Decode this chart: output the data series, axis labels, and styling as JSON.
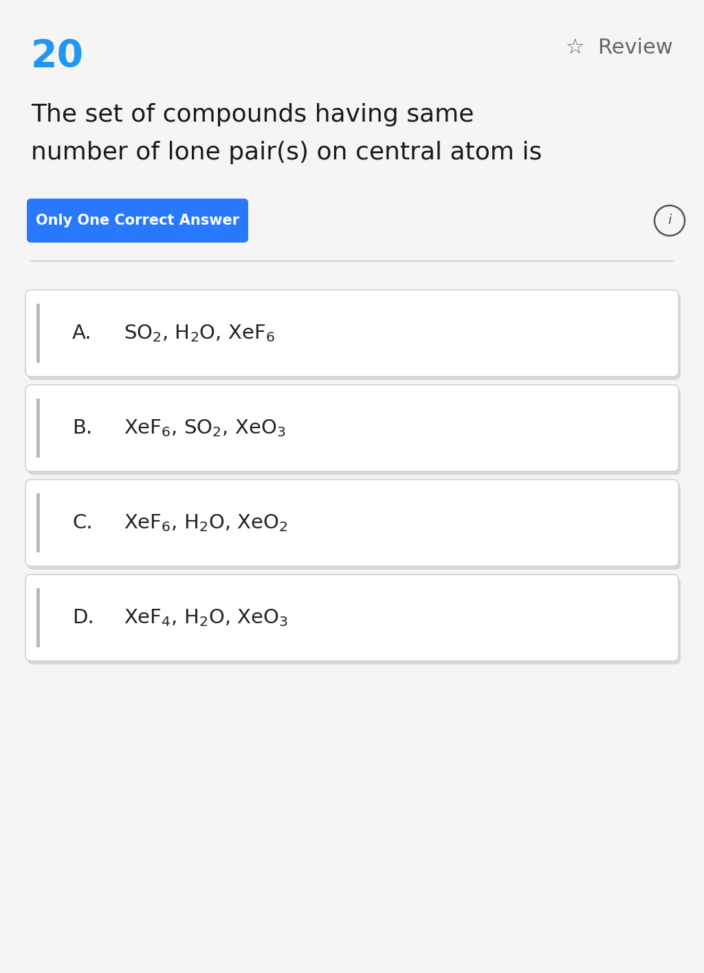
{
  "question_number": "20",
  "question_number_color": "#2196F3",
  "review_text": "☆  Review",
  "review_color": "#666666",
  "question_text_line1": "The set of compounds having same",
  "question_text_line2": "number of lone pair(s) on central atom is",
  "question_font_size": 26,
  "button_text": "Only One Correct Answer",
  "button_bg_color": "#2979FF",
  "button_text_color": "#ffffff",
  "info_icon_color": "#555555",
  "divider_color": "#cccccc",
  "background_color": "#f5f5f5",
  "card_background": "#ffffff",
  "option_box_bg": "#ffffff",
  "option_box_border": "#dddddd",
  "option_box_shadow": "#d0d0d0",
  "option_left_border": "#bbbbbb",
  "options": [
    {
      "label": "A.",
      "text": "SO$_2$, H$_2$O, XeF$_6$"
    },
    {
      "label": "B.",
      "text": "XeF$_6$, SO$_2$, XeO$_3$"
    },
    {
      "label": "C.",
      "text": "XeF$_6$, H$_2$O, XeO$_2$"
    },
    {
      "label": "D.",
      "text": "XeF$_4$, H$_2$O, XeO$_3$"
    }
  ],
  "option_font_size": 21,
  "label_font_size": 21,
  "fig_width": 10.24,
  "fig_height": 14.16,
  "dpi": 100
}
